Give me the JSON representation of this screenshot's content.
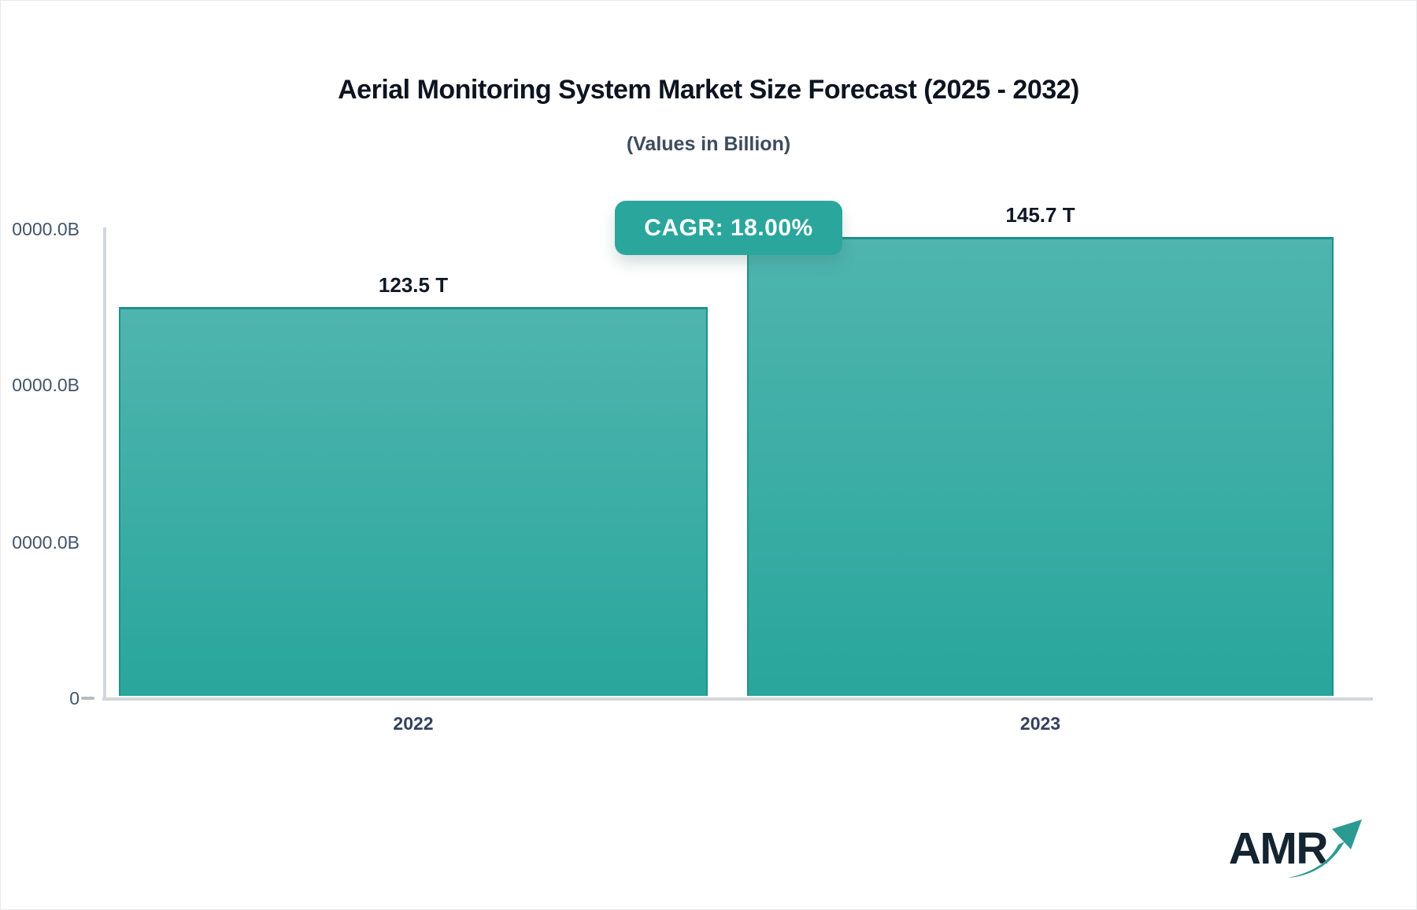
{
  "header": {
    "title": "Aerial Monitoring System Market Size Forecast (2025 - 2032)",
    "subtitle": "(Values in Billion)"
  },
  "badge": {
    "label": "CAGR: 18.00%"
  },
  "chart_data": {
    "type": "bar",
    "title": "Aerial Monitoring System Market Size Forecast (2025 - 2032)",
    "subtitle": "(Values in Billion)",
    "categories": [
      "2022",
      "2023"
    ],
    "values": [
      123.5,
      145.7
    ],
    "bar_labels": [
      "123.5 T",
      "145.7 T"
    ],
    "unit": "T",
    "y_tick_labels": [
      "0000.0B",
      "0000.0B",
      "0000.0B",
      "0"
    ],
    "cagr": "CAGR: 18.00%",
    "legend_position": "none",
    "grid": false,
    "xlabel": "",
    "ylabel": ""
  },
  "logo": {
    "text": "AMR"
  },
  "colors": {
    "bar_gradient_top": "#4fb5ae",
    "bar_gradient_bottom": "#29a69c",
    "bar_border": "#1f918a",
    "badge_background": "#2ba69c",
    "badge_text": "#ffffff",
    "axis_line": "#d2d7dd",
    "title_text": "#0d1420",
    "subtitle_text": "#3d4b5e",
    "tick_text": "#44546a",
    "logo_text": "#142430",
    "logo_arrow": "#2c9a93"
  }
}
